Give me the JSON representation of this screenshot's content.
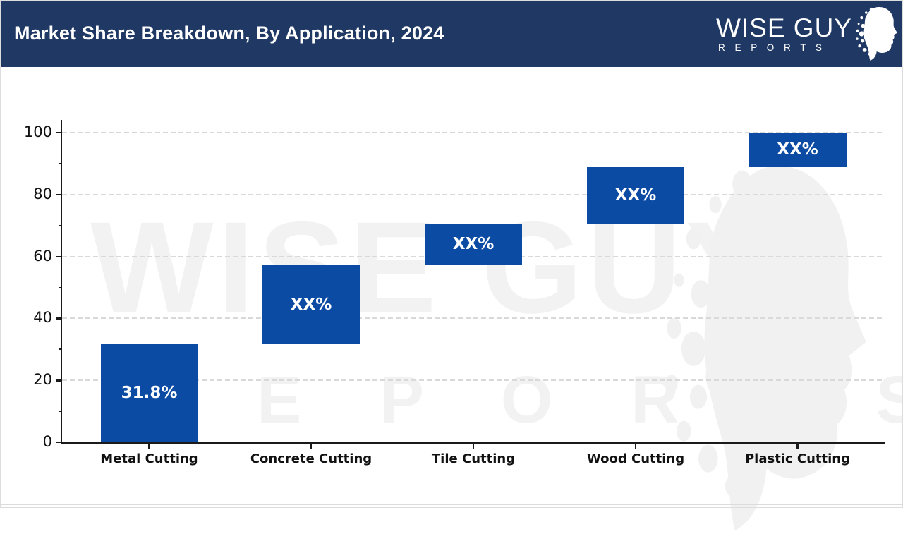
{
  "header": {
    "title": "Market Share Breakdown, By Application, 2024",
    "logo": {
      "line1": "WISE GUY",
      "line2": "R E P O R T S"
    }
  },
  "watermark": {
    "line1": "WISE GUY",
    "line2": "R E P O R T S"
  },
  "colors": {
    "header_bg": "#1F3864",
    "bar": "#0C4BA3",
    "grid": "#D9D9D9",
    "axis": "#1A1A1A",
    "bar_label_text": "#FFFFFF",
    "title_text": "#FFFFFF",
    "watermark_text": "#F2F2F2",
    "watermark_face": "#F1F1F1"
  },
  "chart_data": {
    "type": "bar",
    "subtype": "waterfall",
    "title": "Market Share Breakdown, By Application, 2024",
    "categories": [
      "Metal Cutting",
      "Concrete Cutting",
      "Tile Cutting",
      "Wood Cutting",
      "Plastic Cutting"
    ],
    "segments": [
      {
        "category": "Metal Cutting",
        "start": 0,
        "end": 31.8,
        "label": "31.8%"
      },
      {
        "category": "Concrete Cutting",
        "start": 31.8,
        "end": 57.2,
        "label": "XX%"
      },
      {
        "category": "Tile Cutting",
        "start": 57.2,
        "end": 70.7,
        "label": "XX%"
      },
      {
        "category": "Wood Cutting",
        "start": 70.7,
        "end": 88.9,
        "label": "XX%"
      },
      {
        "category": "Plastic Cutting",
        "start": 88.9,
        "end": 100,
        "label": "XX%"
      }
    ],
    "y_ticks": [
      0,
      20,
      40,
      60,
      80,
      100
    ],
    "y_minor_ticks": [
      10,
      30,
      50,
      70,
      90
    ],
    "ylim": [
      0,
      104
    ],
    "xlabel": "",
    "ylabel": "",
    "grid": "horizontal-dashed",
    "legend": "none"
  }
}
